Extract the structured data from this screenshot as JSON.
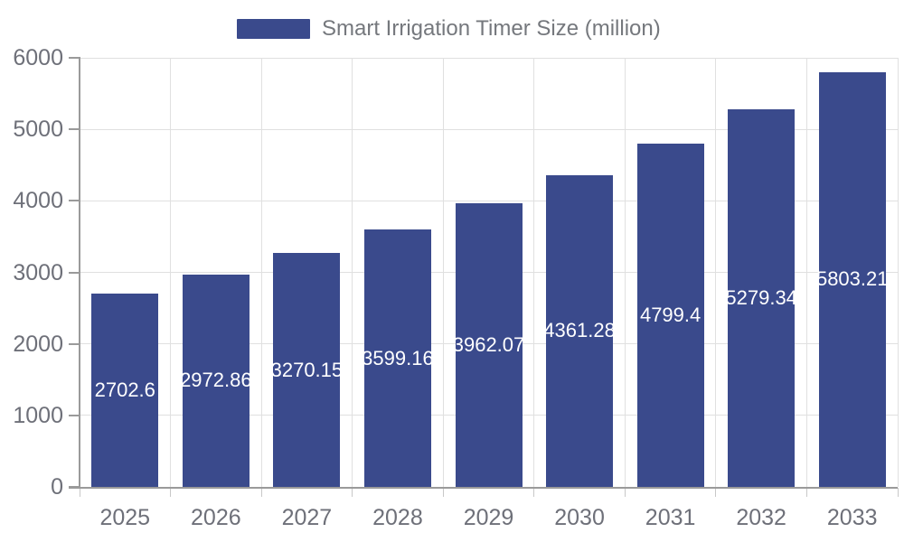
{
  "legend": {
    "label": "Smart Irrigation Timer Size (million)"
  },
  "chart_data": {
    "type": "bar",
    "title": "Smart Irrigation Timer Size (million)",
    "categories": [
      "2025",
      "2026",
      "2027",
      "2028",
      "2029",
      "2030",
      "2031",
      "2032",
      "2033"
    ],
    "values": [
      2702.6,
      2972.86,
      3270.15,
      3599.16,
      3962.07,
      4361.28,
      4799.4,
      5279.34,
      5803.21
    ],
    "bar_labels": [
      "2702.6",
      "2972.86",
      "3270.15",
      "3599.16",
      "3962.07",
      "4361.28",
      "4799.4",
      "5279.34",
      "5803.21"
    ],
    "xlabel": "",
    "ylabel": "",
    "ylim": [
      0,
      6000
    ],
    "yticks": [
      0,
      1000,
      2000,
      3000,
      4000,
      5000,
      6000
    ],
    "grid": true,
    "legend_position": "top"
  },
  "colors": {
    "bar": "#3A4A8C",
    "grid_line": "#E0E0E0",
    "axis_line": "#9A9A9A",
    "x_tick_mark": "#C8C8C8",
    "axis_text": "#6E7079",
    "legend_text": "#75787D",
    "bar_label_text": "#FFFFFF",
    "background": "#FFFFFF"
  }
}
